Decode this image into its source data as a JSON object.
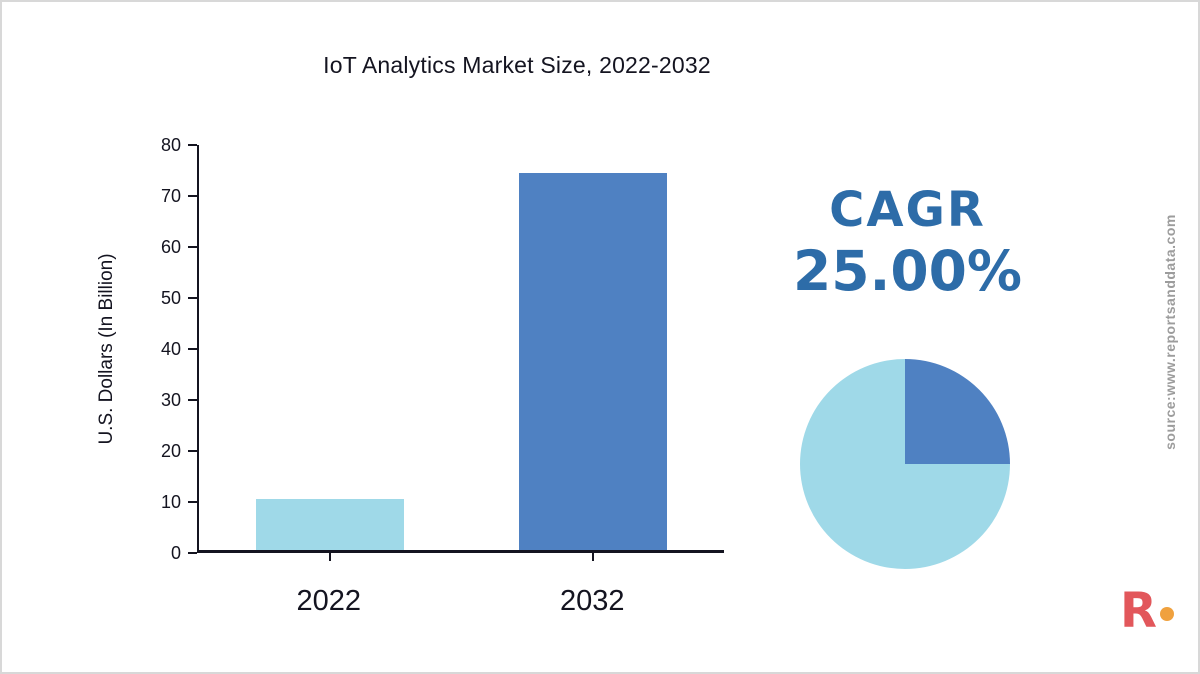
{
  "page": {
    "title": "IoT Analytics Market Size, 2022-2032",
    "source_note": "source:www.reportsanddata.com",
    "logo_letter": "R",
    "colors": {
      "accent_blue": "#2d6ca8",
      "bar_2022": "#9fd9e8",
      "bar_2032": "#4f81c2",
      "logo_red": "#e2575b",
      "logo_orange": "#f0a13e"
    }
  },
  "cagr": {
    "label": "CAGR",
    "value": "25.00%"
  },
  "chart_data": [
    {
      "type": "bar",
      "title": "IoT Analytics Market Size, 2022-2032",
      "categories": [
        "2022",
        "2032"
      ],
      "values": [
        10,
        74.5
      ],
      "xlabel": "",
      "ylabel": "U.S. Dollars (In Billion)",
      "ylim": [
        0,
        80
      ],
      "yticks": [
        0,
        10,
        20,
        30,
        40,
        50,
        60,
        70,
        80
      ],
      "bar_colors": [
        "#9fd9e8",
        "#4f81c2"
      ],
      "grid": false,
      "legend": "none"
    },
    {
      "type": "pie",
      "values": [
        25,
        75
      ],
      "colors": [
        "#4f81c2",
        "#9fd9e8"
      ],
      "start_angle_deg": 0,
      "direction": "clockwise"
    }
  ]
}
